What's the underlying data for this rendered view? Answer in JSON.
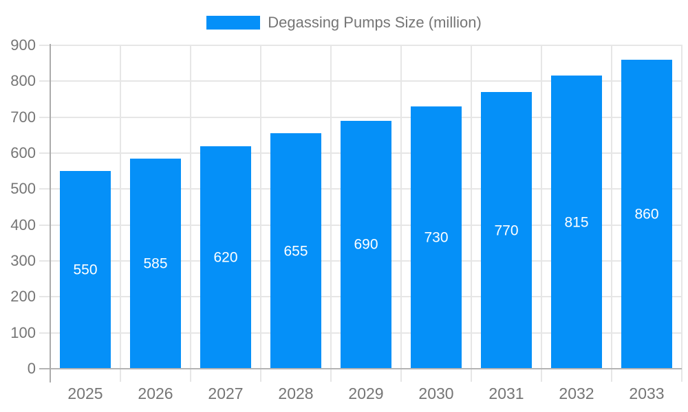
{
  "legend": {
    "label": "Degassing Pumps Size (million)"
  },
  "colors": {
    "bar": "#0590f8",
    "legend_text": "#757575",
    "axis_text": "#757575",
    "grid_line": "#e6e6e6",
    "axis_line": "#ababab",
    "baseline": "#b3b3b3",
    "value_label_text": "#ffffff",
    "background": "#ffffff"
  },
  "chart_data": {
    "type": "bar",
    "title": "Degassing Pumps Size (million)",
    "categories": [
      "2025",
      "2026",
      "2027",
      "2028",
      "2029",
      "2030",
      "2031",
      "2032",
      "2033"
    ],
    "series": [
      {
        "name": "Degassing Pumps Size (million)",
        "values": [
          550,
          585,
          620,
          655,
          690,
          730,
          770,
          815,
          860
        ]
      }
    ],
    "values": [
      550,
      585,
      620,
      655,
      690,
      730,
      770,
      815,
      860
    ],
    "xlabel": "",
    "ylabel": "",
    "ylim": [
      0,
      900
    ],
    "yticks": [
      0,
      100,
      200,
      300,
      400,
      500,
      600,
      700,
      800,
      900
    ],
    "grid": "horizontal and vertical lines on",
    "legend_position": "top-center",
    "value_labels_position": "inside-middle"
  }
}
